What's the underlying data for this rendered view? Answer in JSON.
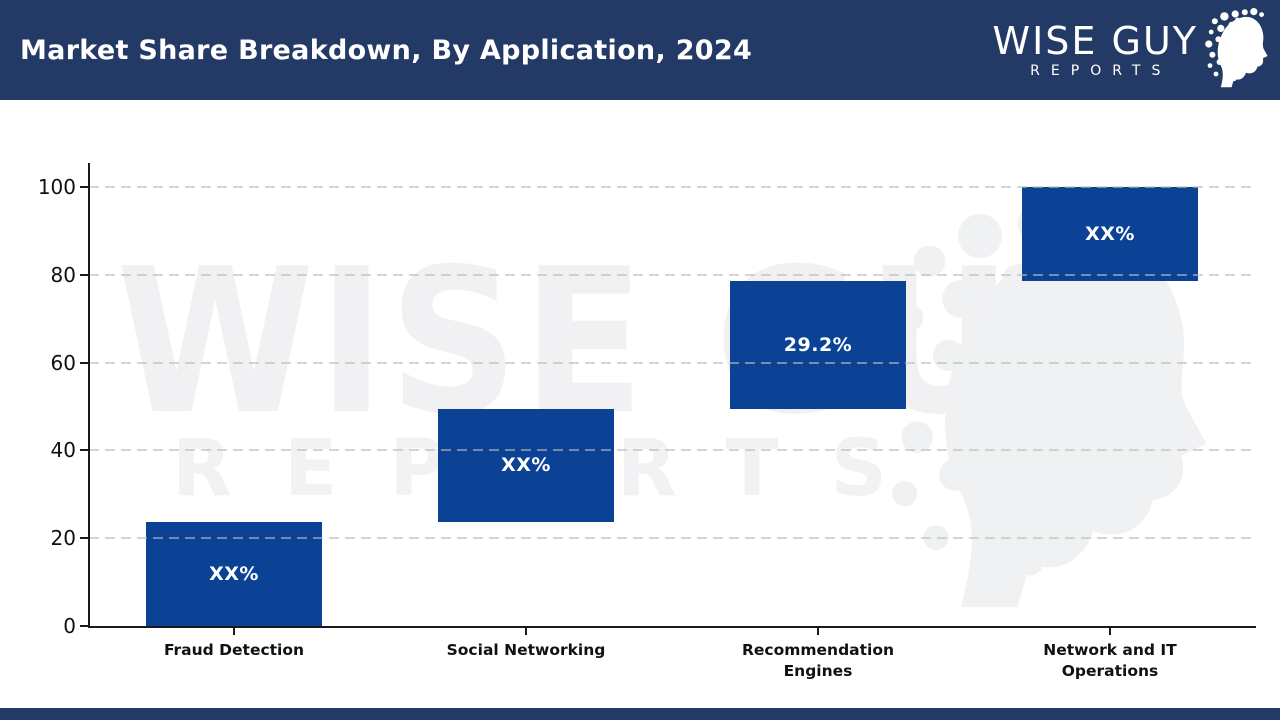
{
  "header": {
    "title": "Market Share Breakdown, By Application, 2024",
    "brand": {
      "line1": "WISE GUY",
      "line2": "REPORTS"
    }
  },
  "watermark": {
    "line1": "WISE GUY",
    "line2": "REPORTS"
  },
  "footer": {},
  "colors": {
    "header_navy": "#233a66",
    "bar_blue": "#0b4296",
    "bar_label_white": "#ffffff",
    "axis_black": "#1a1a1a",
    "gridline_gray": "#d1d1d1",
    "watermark_gray": "#f1f1f4"
  },
  "chart_data": {
    "type": "bar",
    "variant": "waterfall",
    "title": "Market Share Breakdown, By Application, 2024",
    "categories": [
      "Fraud Detection",
      "Social Networking",
      "Recommendation Engines",
      "Network and IT Operations"
    ],
    "bars": [
      {
        "category": "Fraud Detection",
        "start": 0,
        "value": 23.7,
        "end": 23.7,
        "label": "XX%"
      },
      {
        "category": "Social Networking",
        "start": 23.7,
        "value": 25.8,
        "end": 49.5,
        "label": "XX%"
      },
      {
        "category": "Recommendation Engines",
        "start": 49.5,
        "value": 29.2,
        "end": 78.7,
        "label": "29.2%"
      },
      {
        "category": "Network and IT Operations",
        "start": 78.7,
        "value": 21.3,
        "end": 100,
        "label": "XX%"
      }
    ],
    "xlabel": "",
    "ylabel": "",
    "ylim": [
      0,
      100
    ],
    "yticks": [
      0,
      20,
      40,
      60,
      80,
      100
    ],
    "grid": "horizontal-dashed",
    "legend": "none",
    "bar_color": "#0b4296",
    "unit": "%"
  }
}
